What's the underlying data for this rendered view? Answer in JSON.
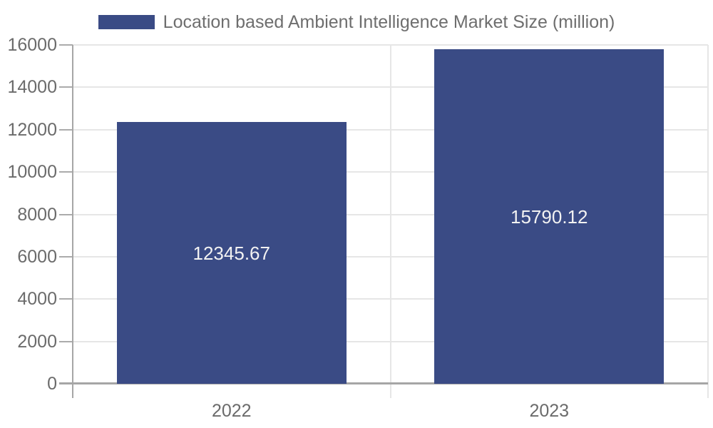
{
  "legend": {
    "label": "Location based Ambient Intelligence Market Size (million)"
  },
  "chart_data": {
    "type": "bar",
    "title": "Location based Ambient Intelligence Market Size (million)",
    "categories": [
      "2022",
      "2023"
    ],
    "series": [
      {
        "name": "Location based Ambient Intelligence Market Size (million)",
        "values": [
          12345.67,
          15790.12
        ],
        "color": "#3A4B85"
      }
    ],
    "data_labels": [
      "12345.67",
      "15790.12"
    ],
    "xlabel": "",
    "ylabel": "",
    "ylim": [
      0,
      16000
    ],
    "ytick_interval": 2000,
    "yticks": [
      0,
      2000,
      4000,
      6000,
      8000,
      10000,
      12000,
      14000,
      16000
    ],
    "grid": true,
    "legend_position": "top"
  },
  "colors": {
    "bar": "#3A4B85",
    "grid": "#E6E6E6",
    "axis": "#A6A6A6",
    "tick": "#ABABAB",
    "text": "#6B6B6B",
    "bar_label": "#F2F2F2",
    "background": "#FFFFFF"
  }
}
